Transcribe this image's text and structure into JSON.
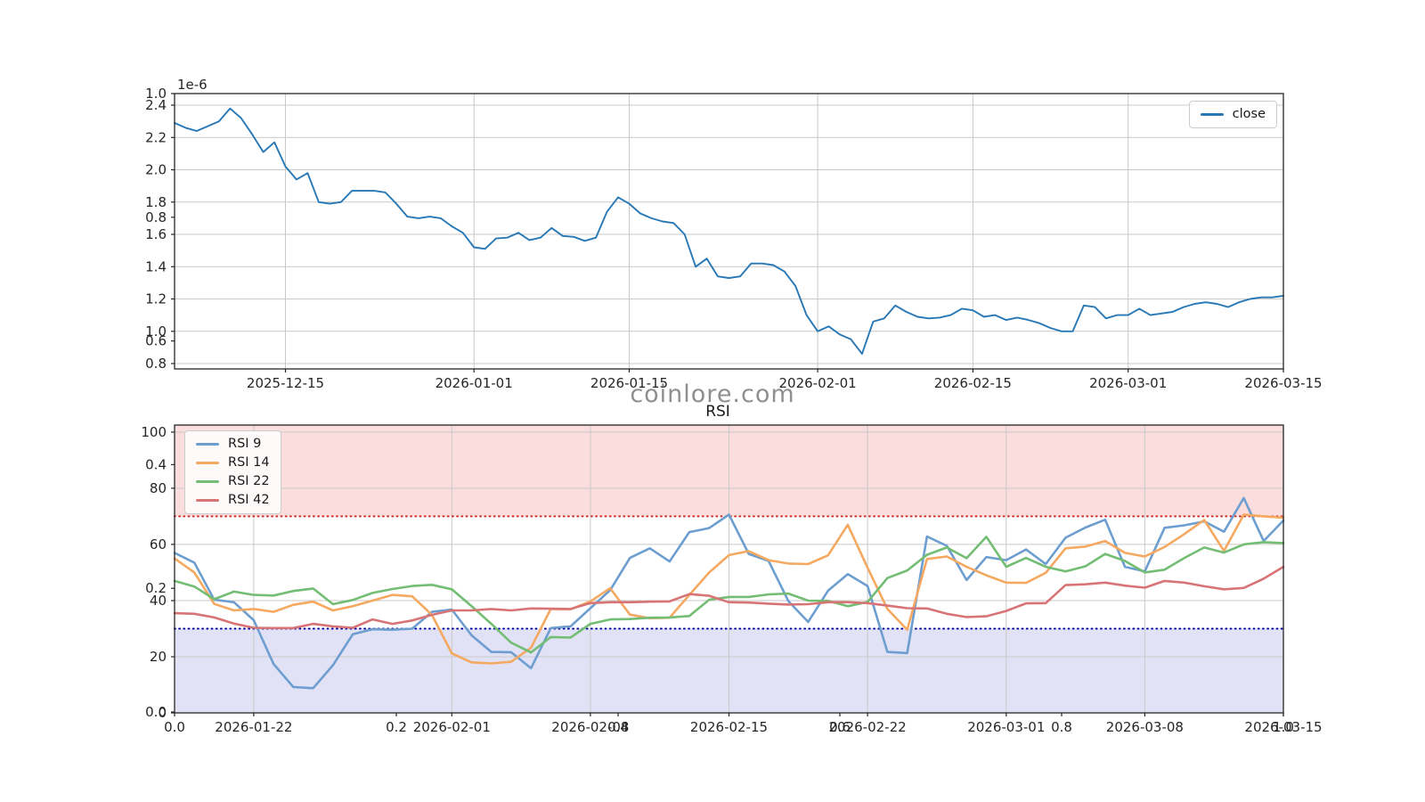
{
  "watermark": "coinlore.com",
  "figure": {
    "background": "#ffffff",
    "grid_color": "#c9c9c9",
    "spine_color": "#262626"
  },
  "chart_data": [
    {
      "type": "line",
      "name": "price",
      "title": "",
      "offset_label": "1e-6",
      "x_start": "2025-12-05",
      "x_unit": "day",
      "ylim": [
        0.767,
        2.472
      ],
      "yticks": [
        {
          "label": "2.4",
          "value": 2.4
        },
        {
          "label": "2.2",
          "value": 2.2
        },
        {
          "label": "2.0",
          "value": 2.0
        },
        {
          "label": "1.8",
          "value": 1.8
        },
        {
          "label": "1.6",
          "value": 1.6
        },
        {
          "label": "1.4",
          "value": 1.4
        },
        {
          "label": "1.2",
          "value": 1.2
        },
        {
          "label": "1.0",
          "value": 1.0
        },
        {
          "label": "0.8",
          "value": 0.8
        }
      ],
      "xticks": [
        {
          "label": "2025-12-15",
          "pos": 10
        },
        {
          "label": "2026-01-01",
          "pos": 27
        },
        {
          "label": "2026-01-15",
          "pos": 41
        },
        {
          "label": "2026-02-01",
          "pos": 58
        },
        {
          "label": "2026-02-15",
          "pos": 72
        },
        {
          "label": "2026-03-01",
          "pos": 86
        },
        {
          "label": "2026-03-15",
          "pos": 100
        }
      ],
      "legend": {
        "position": "upper right",
        "entries": [
          "close"
        ]
      },
      "series": [
        {
          "name": "close",
          "color": "#2878b5",
          "width": 1.9,
          "values": [
            2.29,
            2.26,
            2.24,
            2.27,
            2.3,
            2.38,
            2.32,
            2.22,
            2.11,
            2.17,
            2.02,
            1.94,
            1.98,
            1.8,
            1.79,
            1.8,
            1.87,
            1.87,
            1.87,
            1.86,
            1.79,
            1.71,
            1.7,
            1.71,
            1.7,
            1.65,
            1.61,
            1.52,
            1.51,
            1.575,
            1.58,
            1.61,
            1.565,
            1.58,
            1.64,
            1.59,
            1.585,
            1.56,
            1.58,
            1.74,
            1.83,
            1.79,
            1.73,
            1.7,
            1.68,
            1.67,
            1.6,
            1.4,
            1.45,
            1.34,
            1.33,
            1.34,
            1.42,
            1.42,
            1.41,
            1.37,
            1.28,
            1.1,
            1.0,
            1.03,
            0.98,
            0.95,
            0.86,
            1.06,
            1.08,
            1.16,
            1.12,
            1.09,
            1.08,
            1.085,
            1.1,
            1.14,
            1.13,
            1.09,
            1.1,
            1.07,
            1.085,
            1.07,
            1.05,
            1.02,
            1.0,
            1.0,
            1.16,
            1.15,
            1.08,
            1.1,
            1.1,
            1.14,
            1.1,
            1.11,
            1.12,
            1.15,
            1.17,
            1.18,
            1.17,
            1.15,
            1.18,
            1.2,
            1.21,
            1.21,
            1.22
          ]
        }
      ]
    },
    {
      "type": "line",
      "name": "rsi",
      "title": "RSI",
      "x_start": "2026-01-18",
      "x_unit": "day",
      "ylim": [
        0,
        102.5
      ],
      "yticks": [
        {
          "label": "100",
          "value": 100
        },
        {
          "label": "80",
          "value": 80
        },
        {
          "label": "60",
          "value": 60
        },
        {
          "label": "40",
          "value": 40
        },
        {
          "label": "20",
          "value": 20
        },
        {
          "label": "0",
          "value": 0
        }
      ],
      "xticks": [
        {
          "label": "2026-01-22",
          "pos": 4
        },
        {
          "label": "2026-02-01",
          "pos": 14
        },
        {
          "label": "2026-02-08",
          "pos": 21
        },
        {
          "label": "2026-02-15",
          "pos": 28
        },
        {
          "label": "2026-02-22",
          "pos": 35
        },
        {
          "label": "2026-03-01",
          "pos": 42
        },
        {
          "label": "2026-03-08",
          "pos": 49
        },
        {
          "label": "2026-03-15",
          "pos": 56
        }
      ],
      "bands": [
        {
          "name": "overbought",
          "from": 70,
          "to": 102.5,
          "color": "#fbdddd"
        },
        {
          "name": "oversold",
          "from": 0,
          "to": 30,
          "color": "#e2e2f6"
        }
      ],
      "hlines": [
        {
          "name": "overbought-threshold",
          "y": 70,
          "color": "#d42a2a",
          "style": "dotted"
        },
        {
          "name": "oversold-threshold",
          "y": 30,
          "color": "#0000a0",
          "style": "dotted"
        }
      ],
      "legend": {
        "position": "upper left",
        "entries": [
          "RSI 9",
          "RSI 14",
          "RSI 22",
          "RSI 42"
        ]
      },
      "series": [
        {
          "name": "RSI 9",
          "color": "#6d9ecf",
          "width": 2.6,
          "values": [
            57,
            53.5,
            40.3,
            39.4,
            33,
            17.4,
            9.2,
            8.8,
            17,
            28,
            29.8,
            29.6,
            30,
            36,
            36.8,
            27.6,
            21.7,
            21.6,
            15.9,
            30.2,
            30.8,
            37.3,
            43.7,
            55.2,
            58.6,
            53.9,
            64.4,
            65.8,
            70.6,
            56.6,
            54.1,
            39.8,
            32.4,
            43.5,
            49.4,
            45.2,
            21.7,
            21.3,
            62.8,
            59.5,
            47.3,
            55.5,
            54.4,
            58.2,
            53,
            62.4,
            66,
            68.8,
            52,
            50.4,
            65.9,
            66.8,
            68.2,
            64.5,
            76.5,
            61.2,
            68.5
          ]
        },
        {
          "name": "RSI 14",
          "color": "#f5a860",
          "width": 2.6,
          "values": [
            55,
            50,
            38.8,
            36.5,
            37,
            36,
            38.5,
            39.6,
            36.5,
            38,
            40,
            42,
            41.5,
            34.9,
            21.2,
            18,
            17.6,
            18.2,
            23.2,
            37,
            36.9,
            39.7,
            44.4,
            35,
            33.7,
            33.9,
            42,
            50,
            56.2,
            57.6,
            54.4,
            53.2,
            53,
            56.1,
            67,
            51.7,
            37,
            29.6,
            54.8,
            55.7,
            52,
            49,
            46.4,
            46.3,
            49.9,
            58.6,
            59.2,
            61.2,
            57,
            55.7,
            59.1,
            63.7,
            68.7,
            57.7,
            70.6,
            70,
            69.5
          ]
        },
        {
          "name": "RSI 22",
          "color": "#74bd74",
          "width": 2.6,
          "values": [
            47,
            45,
            40.5,
            43.2,
            42,
            41.8,
            43.4,
            44.3,
            38.7,
            40.2,
            42.7,
            44.1,
            45.2,
            45.6,
            44,
            38,
            31.7,
            25,
            21.5,
            27,
            26.8,
            31.7,
            33.3,
            33.4,
            33.9,
            34,
            34.5,
            40.3,
            41.3,
            41.3,
            42.2,
            42.5,
            40,
            39.9,
            38,
            39.5,
            48,
            50.7,
            56.3,
            58.9,
            55.1,
            62.7,
            52,
            55.2,
            52,
            50.4,
            52.2,
            56.6,
            54.1,
            50,
            51,
            55.2,
            58.9,
            57.1,
            60,
            60.8,
            60.5
          ]
        },
        {
          "name": "RSI 42",
          "color": "#d87476",
          "width": 2.6,
          "values": [
            35.5,
            35.3,
            34,
            31.8,
            30.3,
            30.2,
            30.2,
            31.7,
            30.8,
            30.3,
            33.3,
            31.7,
            32.9,
            34.9,
            36.5,
            36.5,
            37,
            36.5,
            37.2,
            37.1,
            37,
            39.1,
            39.4,
            39.4,
            39.6,
            39.7,
            42.3,
            41.7,
            39.4,
            39.3,
            38.9,
            38.6,
            38.7,
            39.4,
            39.4,
            39.1,
            38.2,
            37.3,
            37.2,
            35.3,
            34.1,
            34.4,
            36.3,
            39,
            39.1,
            45.5,
            45.8,
            46.4,
            45.3,
            44.6,
            47,
            46.4,
            45.1,
            44,
            44.5,
            47.8,
            52
          ]
        }
      ]
    },
    {
      "type": "overlay-axes",
      "name": "figure-overlay",
      "xtick_labels": [
        "0.0",
        "0.2",
        "0.4",
        "0.6",
        "0.8",
        "1.0"
      ],
      "ytick_labels": [
        "1.0",
        "0.8",
        "0.6",
        "0.4",
        "0.2",
        "0.0"
      ]
    }
  ]
}
